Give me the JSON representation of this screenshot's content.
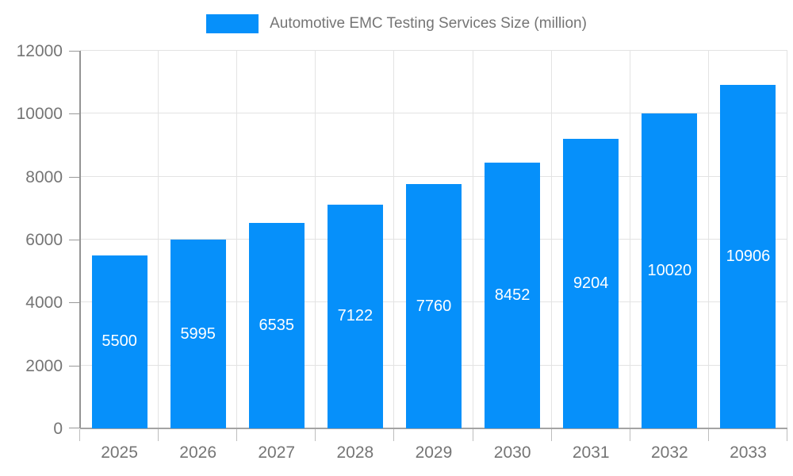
{
  "legend": {
    "label": "Automotive EMC Testing Services Size (million)",
    "swatch_color": "#0690fa"
  },
  "chart_data": {
    "type": "bar",
    "title": "Automotive EMC Testing Services Size (million)",
    "categories": [
      "2025",
      "2026",
      "2027",
      "2028",
      "2029",
      "2030",
      "2031",
      "2032",
      "2033"
    ],
    "values": [
      5500,
      5995,
      6535,
      7122,
      7760,
      8452,
      9204,
      10020,
      10906
    ],
    "xlabel": "",
    "ylabel": "",
    "ylim": [
      0,
      12000
    ],
    "y_ticks": [
      0,
      2000,
      4000,
      6000,
      8000,
      10000,
      12000
    ],
    "grid": true,
    "legend_position": "top",
    "bar_color": "#0690fa",
    "bar_label_color": "#ffffff",
    "grid_color": "#e3e3e3",
    "axis_color": "#999999",
    "text_color": "#757575"
  }
}
